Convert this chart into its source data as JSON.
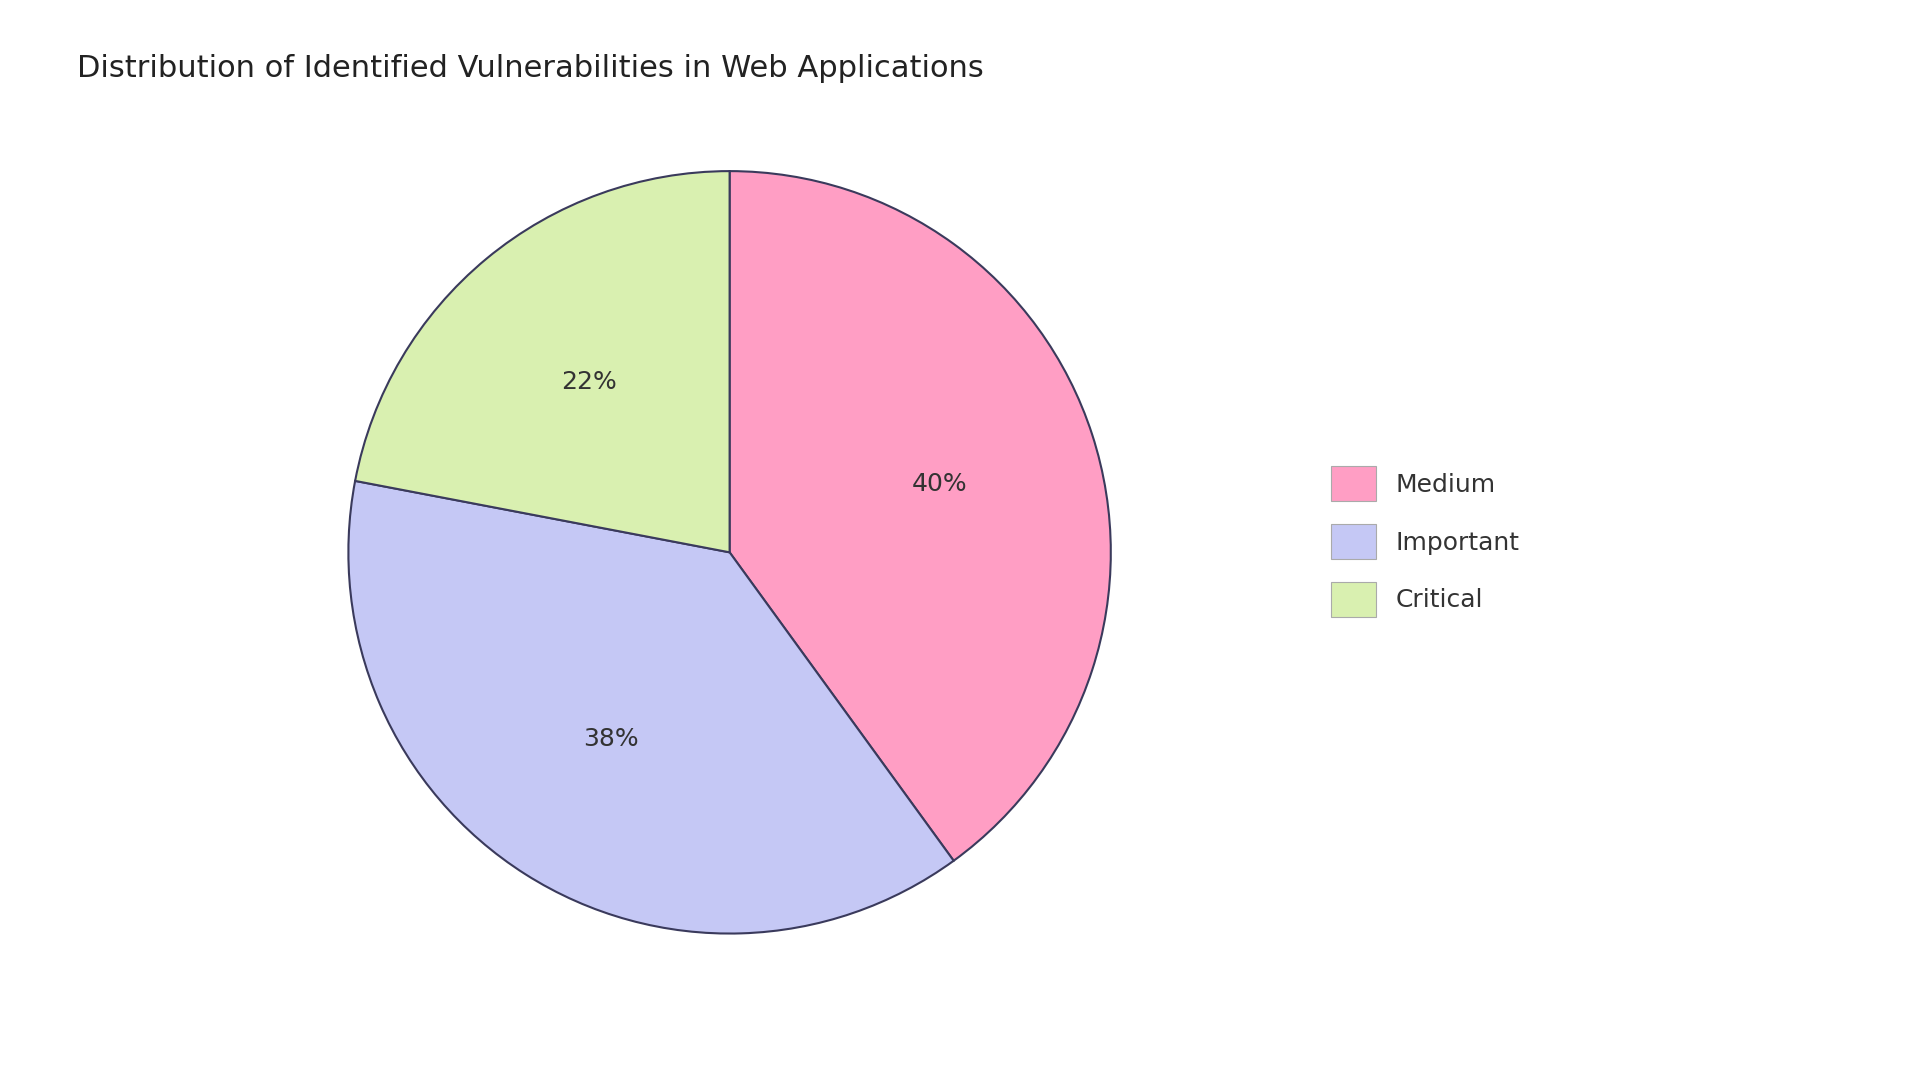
{
  "title": "Distribution of Identified Vulnerabilities in Web Applications",
  "slices": [
    {
      "label": "Medium",
      "value": 40,
      "color": "#FF9EC4",
      "pct": "40%"
    },
    {
      "label": "Important",
      "value": 38,
      "color": "#C5C8F5",
      "pct": "38%"
    },
    {
      "label": "Critical",
      "value": 22,
      "color": "#D9F0B0",
      "pct": "22%"
    }
  ],
  "background_color": "#FFFFFF",
  "title_fontsize": 22,
  "label_fontsize": 18,
  "legend_fontsize": 18,
  "startangle": 90,
  "edge_color": "#3a3a5c",
  "edge_width": 1.5
}
